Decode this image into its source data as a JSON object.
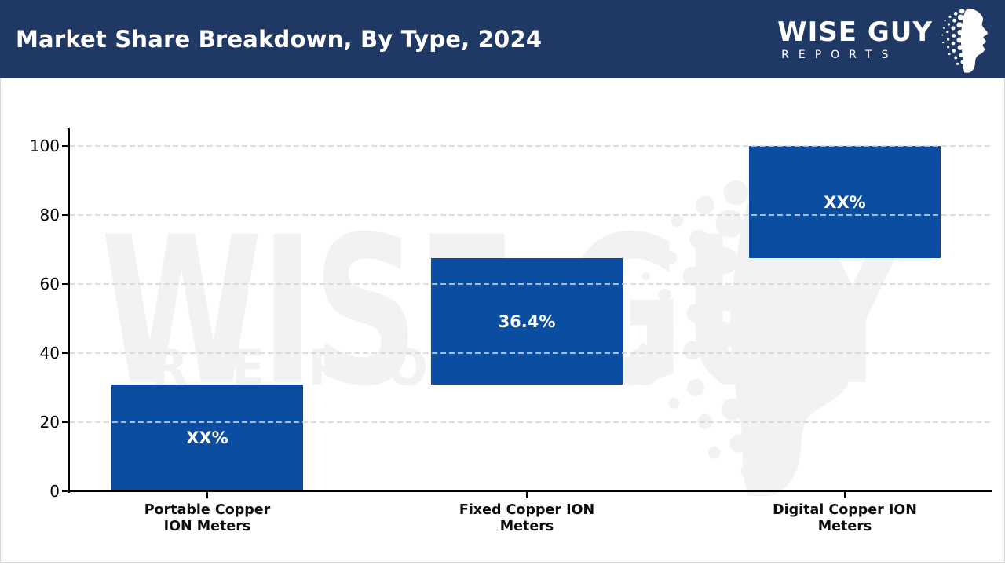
{
  "header": {
    "title": "Market Share Breakdown, By Type, 2024",
    "logo": {
      "line1": "WISE GUY",
      "line2": "REPORTS"
    }
  },
  "watermark": {
    "line1": "WISE GUY",
    "line2": "REPORTS"
  },
  "chart_data": {
    "type": "bar",
    "subtype": "stacked-waterfall",
    "title": "Market Share Breakdown, By Type, 2024",
    "categories": [
      [
        "Portable Copper",
        "ION Meters"
      ],
      [
        "Fixed Copper ION",
        "Meters"
      ],
      [
        "Digital Copper ION",
        "Meters"
      ]
    ],
    "segments": [
      {
        "category": "Portable Copper ION Meters",
        "start": 0,
        "end": 31.0,
        "label": "XX%"
      },
      {
        "category": "Fixed Copper ION Meters",
        "start": 31.0,
        "end": 67.4,
        "label": "36.4%"
      },
      {
        "category": "Digital Copper ION Meters",
        "start": 67.4,
        "end": 100,
        "label": "XX%"
      }
    ],
    "ylim": [
      0,
      100
    ],
    "yticks": [
      0,
      20,
      40,
      60,
      80,
      100
    ],
    "xlabel": "",
    "ylabel": "",
    "grid": "horizontal-dashed",
    "legend": "none",
    "colors": {
      "bar": "#0B4DA1",
      "bar_label": "#FFFFFF",
      "grid": "#D9D9D9",
      "axis": "#000000",
      "header_background": "#203864",
      "background": "#FFFFFF",
      "watermark": "#F2F2F2"
    }
  }
}
